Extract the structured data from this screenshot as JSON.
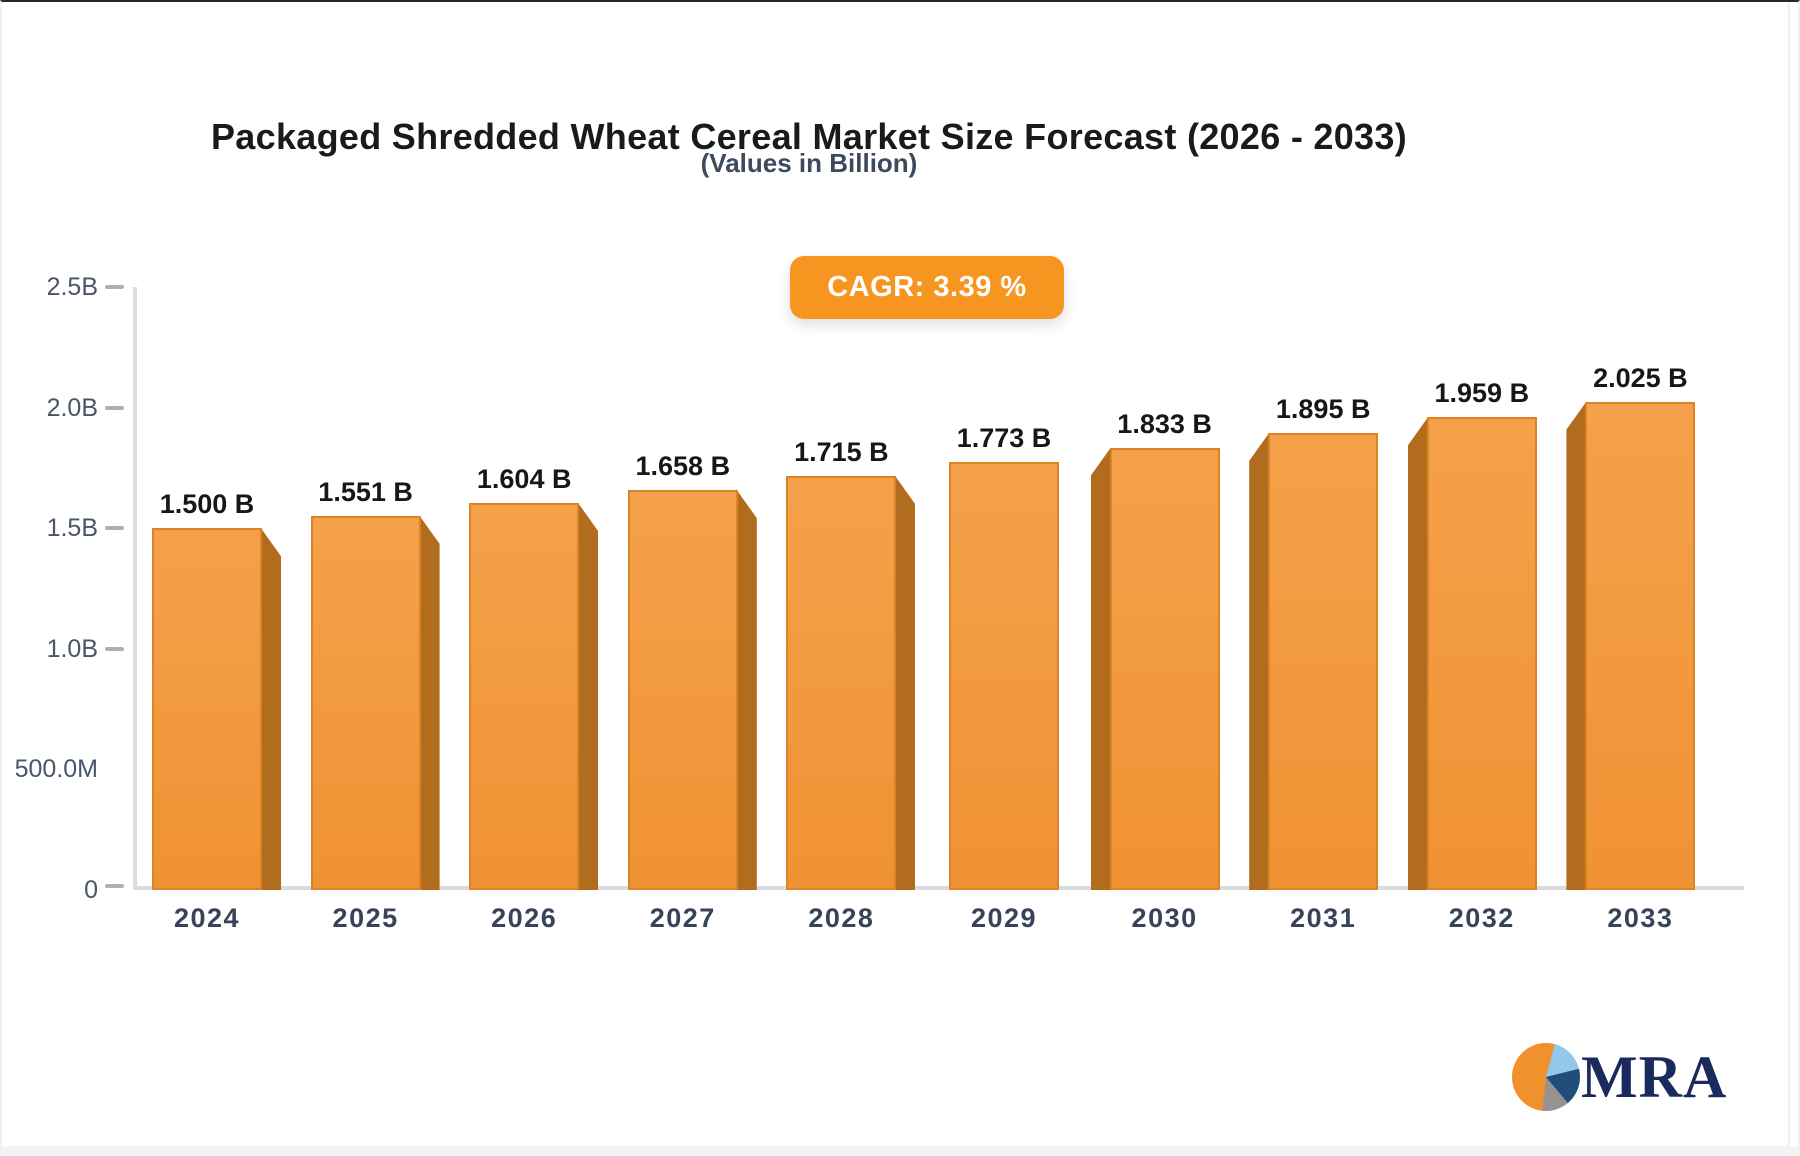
{
  "header": {
    "title": "Packaged Shredded Wheat Cereal Market Size Forecast (2026 - 2033)",
    "subtitle": "(Values in Billion)"
  },
  "badge": {
    "label": "CAGR: 3.39 %",
    "color": "#F6951F"
  },
  "logo": {
    "text": "MRA",
    "icon": "pie-chart-icon",
    "text_color": "#1B2A5E",
    "pie_colors": {
      "orange": "#F0912D",
      "light_blue": "#92C9EA",
      "navy": "#1E4E79",
      "gray": "#97928E"
    }
  },
  "chart_data": {
    "type": "bar",
    "style": "3d",
    "title": "Packaged Shredded Wheat Cereal Market Size Forecast (2026 - 2033)",
    "subtitle": "(Values in Billion)",
    "categories": [
      "2024",
      "2025",
      "2026",
      "2027",
      "2028",
      "2029",
      "2030",
      "2031",
      "2032",
      "2033"
    ],
    "values": [
      1.5,
      1.551,
      1.604,
      1.658,
      1.715,
      1.773,
      1.833,
      1.895,
      1.959,
      2.025
    ],
    "value_labels": [
      "1.500 B",
      "1.551 B",
      "1.604 B",
      "1.658 B",
      "1.715 B",
      "1.773 B",
      "1.833 B",
      "1.895 B",
      "1.959 B",
      "2.025 B"
    ],
    "xlabel": "",
    "ylabel": "",
    "ylim": [
      0,
      2.5
    ],
    "y_ticks": [
      {
        "label": "2.5B",
        "value": 2.5,
        "tick": true
      },
      {
        "label": "2.0B",
        "value": 2.0,
        "tick": true
      },
      {
        "label": "1.5B",
        "value": 1.5,
        "tick": true
      },
      {
        "label": "1.0B",
        "value": 1.0,
        "tick": true
      },
      {
        "label": "500.0M",
        "value": 0.5,
        "tick": false
      },
      {
        "label": "0",
        "value": 0.0,
        "tick": true
      }
    ],
    "bar_color": "#F2993B",
    "bar_side_color": "#B16C1E",
    "grid": false,
    "legend": null
  }
}
